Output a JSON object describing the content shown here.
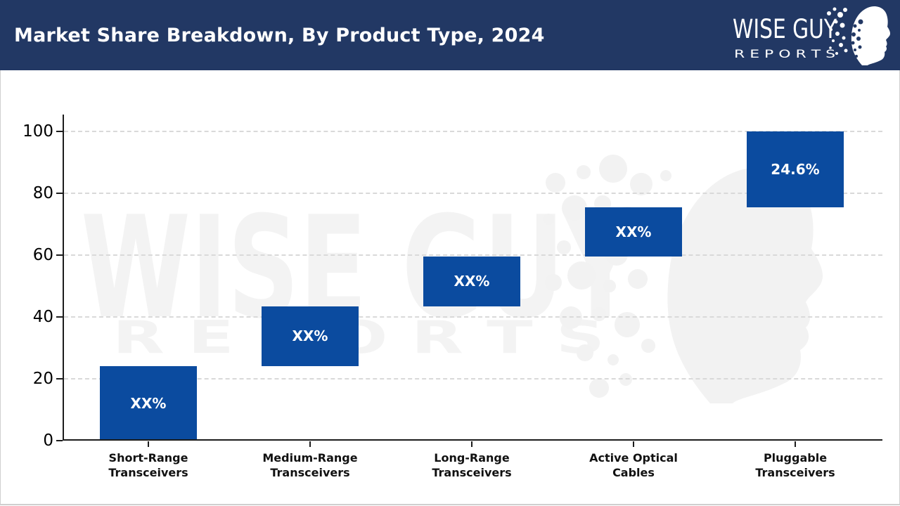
{
  "header": {
    "title": "Market Share Breakdown, By Product Type, 2024",
    "logo": {
      "name": "WISE GUY",
      "tagline": "R E P O R T S"
    }
  },
  "watermark": {
    "line1": "WISE GUY",
    "line2": "R E P O R T S"
  },
  "colors": {
    "header_bg": "#223864",
    "bar": "#0b4b9f",
    "bar_label": "#ffffff",
    "grid": "#d9d9d9",
    "axis": "#1c1c1c",
    "watermark": "#f3f3f3"
  },
  "chart_data": {
    "type": "bar",
    "variant": "waterfall",
    "title": "Market Share Breakdown, By Product Type, 2024",
    "categories": [
      "Short-Range Transceivers",
      "Medium-Range Transceivers",
      "Long-Range Transceivers",
      "Active Optical Cables",
      "Pluggable Transceivers"
    ],
    "category_lines": [
      [
        "Short-Range",
        "Transceivers"
      ],
      [
        "Medium-Range",
        "Transceivers"
      ],
      [
        "Long-Range",
        "Transceivers"
      ],
      [
        "Active Optical",
        "Cables"
      ],
      [
        "Pluggable",
        "Transceivers"
      ]
    ],
    "segments": [
      {
        "category": "Short-Range Transceivers",
        "start": 0,
        "end": 24.2,
        "value": 24.2,
        "label": "XX%"
      },
      {
        "category": "Medium-Range Transceivers",
        "start": 24.2,
        "end": 43.4,
        "value": 19.2,
        "label": "XX%"
      },
      {
        "category": "Long-Range Transceivers",
        "start": 43.4,
        "end": 59.6,
        "value": 16.2,
        "label": "XX%"
      },
      {
        "category": "Active Optical Cables",
        "start": 59.6,
        "end": 75.4,
        "value": 15.8,
        "label": "XX%"
      },
      {
        "category": "Pluggable Transceivers",
        "start": 75.4,
        "end": 100,
        "value": 24.6,
        "label": "24.6%"
      }
    ],
    "yticks": [
      0,
      20,
      40,
      60,
      80,
      100
    ],
    "ylim": [
      0,
      105.5
    ],
    "xlabel": "",
    "ylabel": "",
    "grid": "horizontal-dashed",
    "legend": "none"
  }
}
